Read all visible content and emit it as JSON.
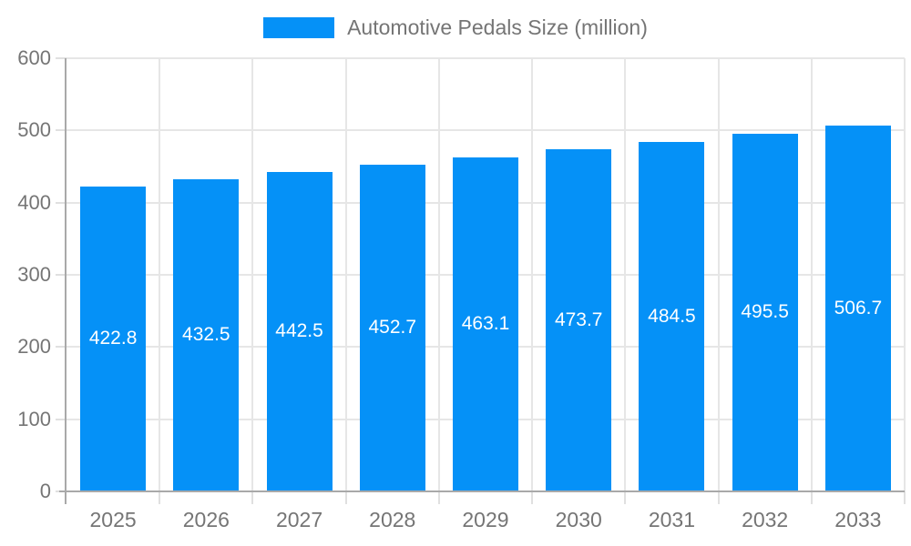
{
  "legend": {
    "label": "Automotive Pedals Size (million)"
  },
  "chart_data": {
    "type": "bar",
    "title": "Automotive Pedals Size (million)",
    "categories": [
      "2025",
      "2026",
      "2027",
      "2028",
      "2029",
      "2030",
      "2031",
      "2032",
      "2033"
    ],
    "values": [
      422.8,
      432.5,
      442.5,
      452.7,
      463.1,
      473.7,
      484.5,
      495.5,
      506.7
    ],
    "value_labels": [
      "422.8",
      "432.5",
      "442.5",
      "452.7",
      "463.1",
      "473.7",
      "484.5",
      "495.5",
      "506.7"
    ],
    "xlabel": "",
    "ylabel": "",
    "ylim": [
      0,
      600
    ],
    "yticks": [
      0,
      100,
      200,
      300,
      400,
      500,
      600
    ],
    "ytick_labels": [
      "0",
      "100",
      "200",
      "300",
      "400",
      "500",
      "600"
    ],
    "grid": true,
    "legend_position": "top",
    "colors": {
      "bar": "#0591f7",
      "grid": "#e6e6e6",
      "tick": "#e0e0e0",
      "axis_line": "#a9a9a9",
      "axis_text": "#757575",
      "value_label": "#ffffff"
    }
  }
}
